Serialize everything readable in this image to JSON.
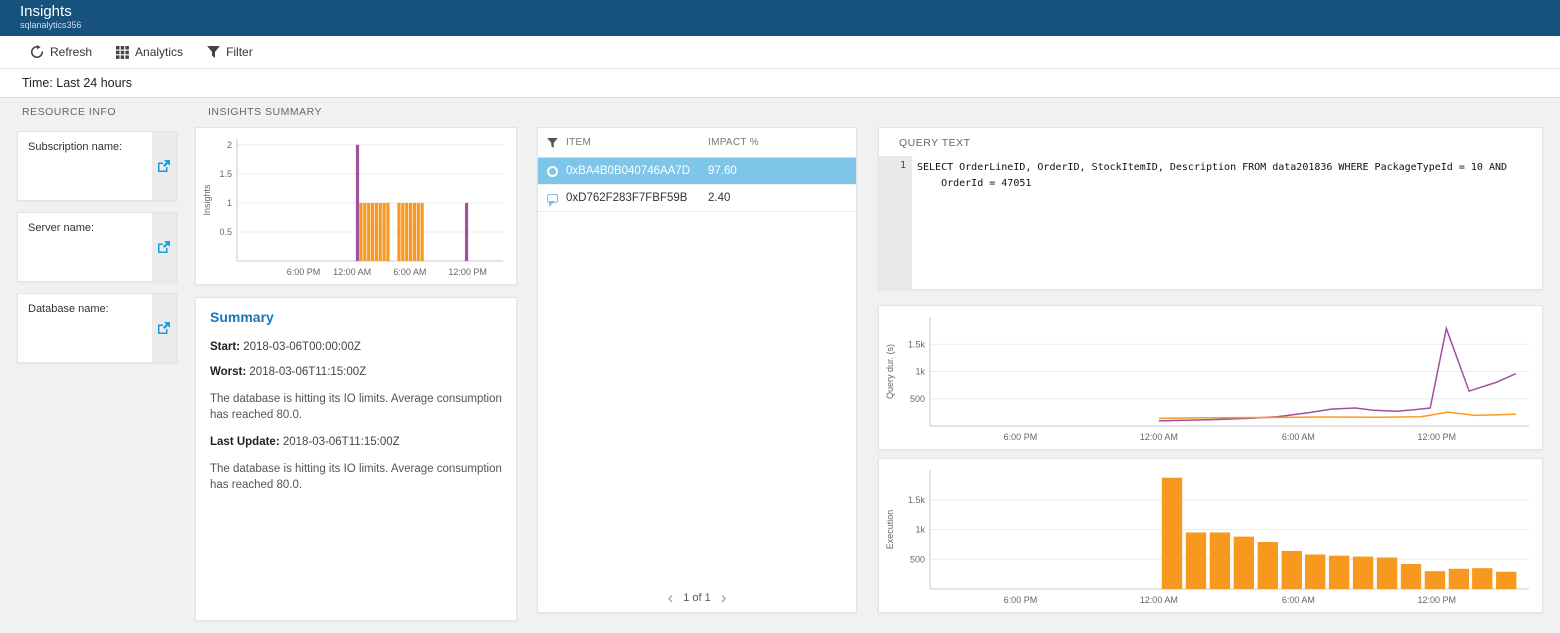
{
  "colors": {
    "header_bg": "#17527c",
    "accent_blue": "#1b9ed9",
    "selected_row_bg": "#7dc6ea",
    "orange": "#f8991f",
    "purple": "#a0519f",
    "summary_title_blue": "#1777bb"
  },
  "header": {
    "title": "Insights",
    "subtitle": "sqlanalytics356"
  },
  "toolbar": {
    "items": [
      {
        "label": "Refresh",
        "icon": "refresh-icon"
      },
      {
        "label": "Analytics",
        "icon": "analytics-icon"
      },
      {
        "label": "Filter",
        "icon": "filter-icon"
      }
    ]
  },
  "time_bar": {
    "label": "Time: Last 24 hours"
  },
  "resource_info": {
    "heading": "RESOURCE INFO",
    "fields": [
      {
        "label": "Subscription name:"
      },
      {
        "label": "Server name:"
      },
      {
        "label": "Database name:"
      }
    ]
  },
  "insights_summary": {
    "heading": "INSIGHTS SUMMARY",
    "summary": {
      "title": "Summary",
      "start_label": "Start:",
      "start_value": "2018-03-06T00:00:00Z",
      "worst_label": "Worst:",
      "worst_value": "2018-03-06T11:15:00Z",
      "worst_description": "The database is hitting its IO limits. Average consumption has reached 80.0.",
      "last_update_label": "Last Update:",
      "last_update_value": "2018-03-06T11:15:00Z",
      "last_update_description": "The database is hitting its IO limits. Average consumption has reached 80.0."
    }
  },
  "items_table": {
    "columns": [
      "ITEM",
      "IMPACT %"
    ],
    "rows": [
      {
        "item": "0xBA4B0B040746AA7D",
        "impact": "97.60",
        "selected": true,
        "icon": "circle-icon"
      },
      {
        "item": "0xD762F283F7FBF59B",
        "impact": "2.40",
        "selected": false,
        "icon": "comment-icon"
      }
    ],
    "pagination": {
      "prev": "‹",
      "label": "1 of 1",
      "next": "›"
    }
  },
  "query_text": {
    "heading": "QUERY TEXT",
    "line_number": "1",
    "sql": "SELECT OrderLineID, OrderID, StockItemID, Description FROM data201836 WHERE PackageTypeId = 10 AND\n    OrderId = 47051"
  },
  "chart_data": [
    {
      "name": "insights-over-time",
      "type": "bar",
      "title": "",
      "ylabel": "Insights",
      "ylim": [
        0,
        2.1
      ],
      "yticks": [
        {
          "v": 0.5,
          "label": "0.5"
        },
        {
          "v": 1,
          "label": "1"
        },
        {
          "v": 1.5,
          "label": "1.5"
        },
        {
          "v": 2,
          "label": "2"
        }
      ],
      "xticks": [
        {
          "pos": 0.25,
          "label": "6:00 PM"
        },
        {
          "pos": 0.433,
          "label": "12:00 AM"
        },
        {
          "pos": 0.65,
          "label": "6:00 AM"
        },
        {
          "pos": 0.867,
          "label": "12:00 PM"
        }
      ],
      "bar_width": 0.012,
      "bars": [
        {
          "pos": 0.447,
          "value": 2,
          "color": "#a0519f"
        },
        {
          "pos": 0.46,
          "value": 1,
          "color": "#f8991f"
        },
        {
          "pos": 0.4745,
          "value": 1,
          "color": "#f8991f"
        },
        {
          "pos": 0.489,
          "value": 1,
          "color": "#f8991f"
        },
        {
          "pos": 0.5035,
          "value": 1,
          "color": "#f8991f"
        },
        {
          "pos": 0.518,
          "value": 1,
          "color": "#f8991f"
        },
        {
          "pos": 0.5325,
          "value": 1,
          "color": "#f8991f"
        },
        {
          "pos": 0.547,
          "value": 1,
          "color": "#f8991f"
        },
        {
          "pos": 0.5615,
          "value": 1,
          "color": "#f8991f"
        },
        {
          "pos": 0.603,
          "value": 1,
          "color": "#f8991f"
        },
        {
          "pos": 0.6175,
          "value": 1,
          "color": "#f8991f"
        },
        {
          "pos": 0.632,
          "value": 1,
          "color": "#f8991f"
        },
        {
          "pos": 0.6465,
          "value": 1,
          "color": "#f8991f"
        },
        {
          "pos": 0.661,
          "value": 1,
          "color": "#f8991f"
        },
        {
          "pos": 0.6755,
          "value": 1,
          "color": "#f8991f"
        },
        {
          "pos": 0.69,
          "value": 1,
          "color": "#f8991f"
        },
        {
          "pos": 0.857,
          "value": 1,
          "color": "#a0519f"
        }
      ]
    },
    {
      "name": "query-duration",
      "type": "line",
      "title": "",
      "ylabel": "Query dur. (s)",
      "ylim": [
        0,
        2000
      ],
      "yticks": [
        {
          "v": 500,
          "label": "500"
        },
        {
          "v": 1000,
          "label": "1k"
        },
        {
          "v": 1500,
          "label": "1.5k"
        }
      ],
      "xticks": [
        {
          "pos": 0.151,
          "label": "6:00 PM"
        },
        {
          "pos": 0.382,
          "label": "12:00 AM"
        },
        {
          "pos": 0.615,
          "label": "6:00 AM"
        },
        {
          "pos": 0.846,
          "label": "12:00 PM"
        }
      ],
      "series": [
        {
          "name": "query-duration",
          "color": "#a0519f",
          "points": [
            [
              0.382,
              95
            ],
            [
              0.43,
              105
            ],
            [
              0.48,
              120
            ],
            [
              0.53,
              140
            ],
            [
              0.58,
              170
            ],
            [
              0.63,
              240
            ],
            [
              0.67,
              310
            ],
            [
              0.71,
              330
            ],
            [
              0.74,
              290
            ],
            [
              0.78,
              270
            ],
            [
              0.81,
              300
            ],
            [
              0.835,
              330
            ],
            [
              0.862,
              1790
            ],
            [
              0.9,
              640
            ],
            [
              0.945,
              800
            ],
            [
              0.978,
              960
            ]
          ]
        },
        {
          "name": "baseline",
          "color": "#f8991f",
          "points": [
            [
              0.382,
              140
            ],
            [
              0.45,
              150
            ],
            [
              0.55,
              155
            ],
            [
              0.65,
              165
            ],
            [
              0.75,
              160
            ],
            [
              0.82,
              170
            ],
            [
              0.865,
              255
            ],
            [
              0.91,
              195
            ],
            [
              0.978,
              215
            ]
          ]
        }
      ]
    },
    {
      "name": "execution-count",
      "type": "bar",
      "title": "",
      "ylabel": "Execution",
      "ylim": [
        0,
        2000
      ],
      "yticks": [
        {
          "v": 500,
          "label": "500"
        },
        {
          "v": 1000,
          "label": "1k"
        },
        {
          "v": 1500,
          "label": "1.5k"
        }
      ],
      "xticks": [
        {
          "pos": 0.151,
          "label": "6:00 PM"
        },
        {
          "pos": 0.382,
          "label": "12:00 AM"
        },
        {
          "pos": 0.615,
          "label": "6:00 AM"
        },
        {
          "pos": 0.846,
          "label": "12:00 PM"
        }
      ],
      "bar_width": 0.034,
      "color": "#f8991f",
      "bars": [
        {
          "pos": 0.387,
          "value": 1870
        },
        {
          "pos": 0.427,
          "value": 950
        },
        {
          "pos": 0.467,
          "value": 950
        },
        {
          "pos": 0.507,
          "value": 880
        },
        {
          "pos": 0.547,
          "value": 790
        },
        {
          "pos": 0.587,
          "value": 640
        },
        {
          "pos": 0.626,
          "value": 580
        },
        {
          "pos": 0.666,
          "value": 560
        },
        {
          "pos": 0.706,
          "value": 545
        },
        {
          "pos": 0.746,
          "value": 530
        },
        {
          "pos": 0.786,
          "value": 420
        },
        {
          "pos": 0.826,
          "value": 300
        },
        {
          "pos": 0.866,
          "value": 340
        },
        {
          "pos": 0.905,
          "value": 350
        },
        {
          "pos": 0.945,
          "value": 290
        }
      ]
    }
  ]
}
